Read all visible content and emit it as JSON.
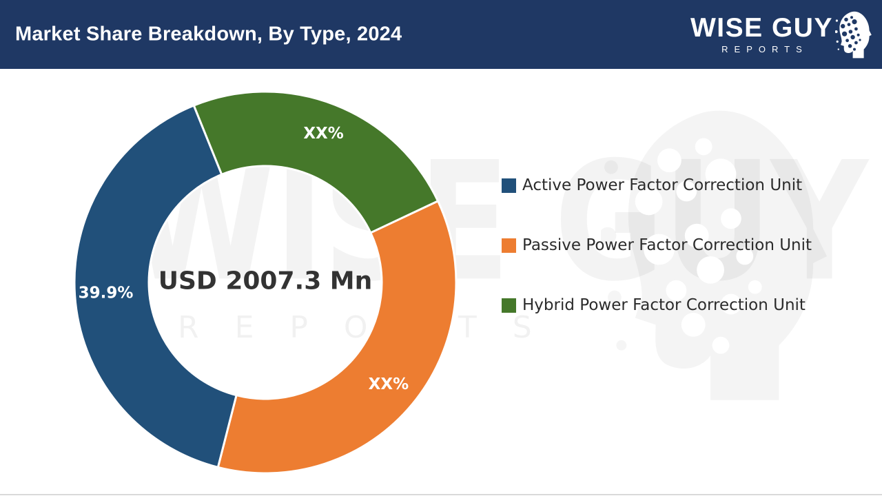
{
  "header": {
    "title": "Market Share Breakdown, By Type, 2024",
    "bg_color": "#1F3864",
    "logo": {
      "line1": "WISE GUY",
      "line2": "REPORTS"
    }
  },
  "watermark": {
    "line1": "WISE GUY",
    "line2": "REPORTS"
  },
  "chart_data": {
    "type": "pie",
    "subtype": "donut",
    "title": "Market Share Breakdown, By Type, 2024",
    "center_label": "USD 2007.3 Mn",
    "start_angle_deg": -22,
    "legend_position": "right",
    "slices": [
      {
        "name": "Hybrid Power Factor Correction Unit",
        "label": "XX%",
        "value": 24.1,
        "color": "#45782A"
      },
      {
        "name": "Passive Power Factor Correction Unit",
        "label": "XX%",
        "value": 36.0,
        "color": "#ED7D31"
      },
      {
        "name": "Active Power Factor Correction Unit",
        "label": "39.9%",
        "value": 39.9,
        "color": "#21507A"
      }
    ]
  },
  "legend": {
    "items": [
      {
        "label": "Active Power Factor Correction Unit",
        "color": "#21507A"
      },
      {
        "label": "Passive Power Factor Correction Unit",
        "color": "#ED7D31"
      },
      {
        "label": "Hybrid Power Factor Correction Unit",
        "color": "#45782A"
      }
    ]
  }
}
